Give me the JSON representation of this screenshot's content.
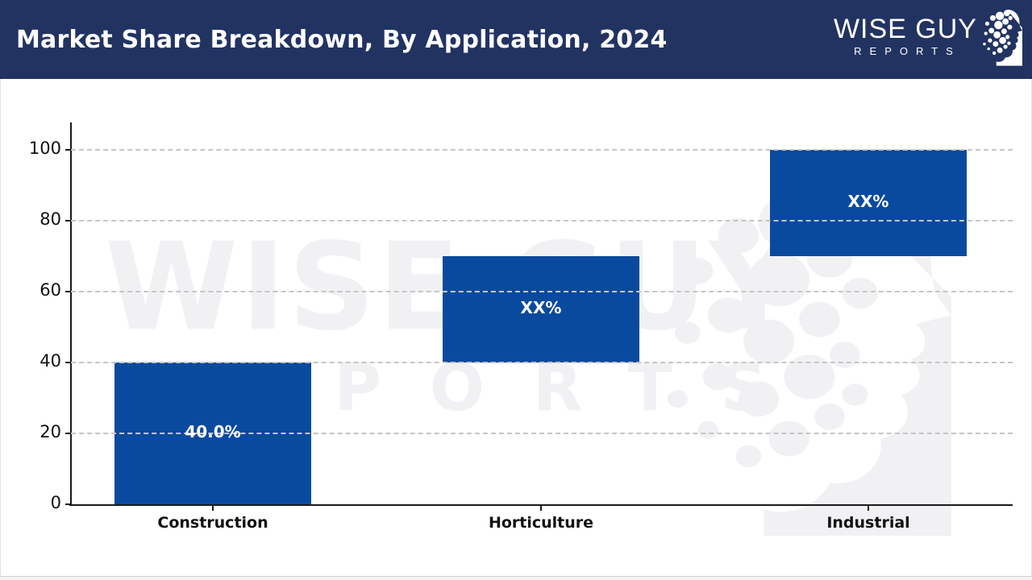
{
  "header": {
    "title": "Market Share Breakdown, By Application, 2024",
    "logo": {
      "wordmark": "WISE GUY",
      "tagline": "REPORTS"
    },
    "bg_color": "#223362"
  },
  "watermark": {
    "wordmark": "WISE GUY",
    "tagline": "REPORTS"
  },
  "chart_data": {
    "type": "bar",
    "variant": "floating-segment-bars (waterfall style market share)",
    "title": "Market Share Breakdown, By Application, 2024",
    "categories": [
      "Construction",
      "Horticulture",
      "Industrial"
    ],
    "series": [
      {
        "name": "Market Share (%)",
        "ranges": [
          [
            0,
            40
          ],
          [
            40,
            70
          ],
          [
            70,
            100
          ]
        ],
        "labels": [
          "40.0%",
          "XX%",
          "XX%"
        ]
      }
    ],
    "xlabel": "",
    "ylabel": "",
    "y_ticks": [
      0,
      20,
      40,
      60,
      80,
      100
    ],
    "ylim": [
      0,
      105
    ],
    "grid": {
      "axis": "y",
      "style": "dashed",
      "color": "#c6c6c6",
      "drawn_over_bars": true
    },
    "legend": "none",
    "bar_color": "#0a4a9e",
    "bar_label_color": "#ffffff",
    "axis_color": "#1a1a1a"
  }
}
